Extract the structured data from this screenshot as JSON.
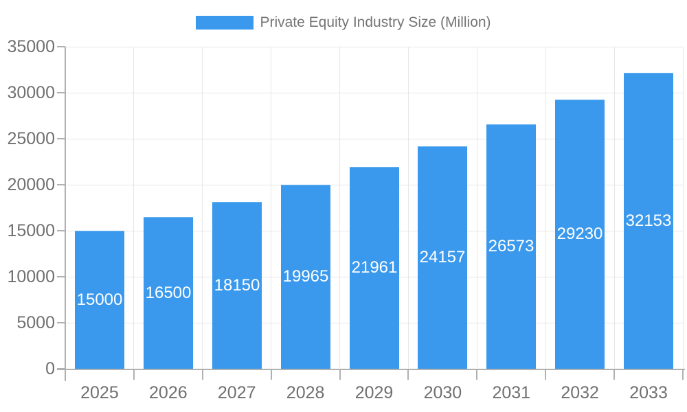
{
  "chart_data": {
    "type": "bar",
    "title": "",
    "categories": [
      "2025",
      "2026",
      "2027",
      "2028",
      "2029",
      "2030",
      "2031",
      "2032",
      "2033"
    ],
    "series": [
      {
        "name": "Private Equity Industry Size (Million)",
        "values": [
          15000,
          16500,
          18150,
          19965,
          21961,
          24157,
          26573,
          29230,
          32153
        ],
        "color": "#3A99EC"
      }
    ],
    "xlabel": "",
    "ylabel": "",
    "ylim": [
      0,
      35000
    ],
    "y_ticks": [
      0,
      5000,
      10000,
      15000,
      20000,
      25000,
      30000,
      35000
    ],
    "grid": true,
    "legend_position": "top-center",
    "value_labels": "inside-center-white"
  },
  "colors": {
    "bar": "#3A99EC",
    "value_label": "#FFFFFF",
    "gridline": "#E6E6E6",
    "axis_line": "#B0B0B0",
    "tick_label": "#707070",
    "legend_text": "#757575",
    "background": "#FFFFFF"
  }
}
